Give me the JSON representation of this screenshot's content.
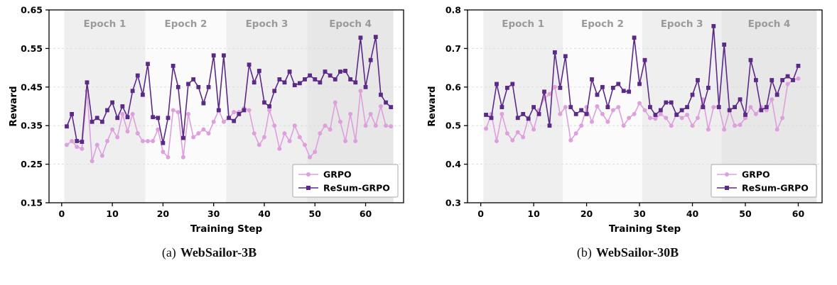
{
  "page": {
    "background": "#ffffff"
  },
  "chart_data": [
    {
      "id": "websailor-3b",
      "type": "line",
      "caption": {
        "prefix": "(a)",
        "title": "WebSailor-3B"
      },
      "xlabel": "Training Step",
      "ylabel": "Reward",
      "xlim": [
        -2.5,
        67.5
      ],
      "ylim": [
        0.15,
        0.65
      ],
      "xticks": [
        0,
        10,
        20,
        30,
        40,
        50,
        60
      ],
      "xticklabels": [
        "0",
        "10",
        "20",
        "30",
        "40",
        "50",
        "60"
      ],
      "yticks": [
        0.15,
        0.25,
        0.35,
        0.45,
        0.55,
        0.65
      ],
      "yticklabels": [
        "0.15",
        "0.25",
        "0.35",
        "0.45",
        "0.55",
        "0.65"
      ],
      "grid": "horizontal-dashed",
      "legend_position": "lower right",
      "epoch_label_color": "#9a9a9a",
      "epochs": [
        {
          "label": "Epoch 1",
          "start": 0.5,
          "end": 16.5,
          "fill": "#efefef"
        },
        {
          "label": "Epoch 2",
          "start": 16.5,
          "end": 32.5,
          "fill": "#fbfbfb"
        },
        {
          "label": "Epoch 3",
          "start": 32.5,
          "end": 48.5,
          "fill": "#efefef"
        },
        {
          "label": "Epoch 4",
          "start": 48.5,
          "end": 65.5,
          "fill": "#e7e7e7"
        }
      ],
      "x_range": [
        1,
        65
      ],
      "series": [
        {
          "name": "GRPO",
          "color": "#DDA0DD",
          "marker": "circle",
          "values": [
            0.3,
            0.31,
            0.295,
            0.29,
            0.44,
            0.258,
            0.3,
            0.272,
            0.31,
            0.34,
            0.32,
            0.38,
            0.335,
            0.38,
            0.33,
            0.31,
            0.31,
            0.31,
            0.34,
            0.282,
            0.268,
            0.39,
            0.385,
            0.268,
            0.38,
            0.32,
            0.33,
            0.34,
            0.33,
            0.36,
            0.39,
            0.36,
            0.37,
            0.385,
            0.385,
            0.395,
            0.39,
            0.33,
            0.3,
            0.32,
            0.39,
            0.35,
            0.29,
            0.33,
            0.31,
            0.35,
            0.32,
            0.3,
            0.268,
            0.282,
            0.33,
            0.35,
            0.34,
            0.41,
            0.36,
            0.31,
            0.38,
            0.31,
            0.44,
            0.35,
            0.38,
            0.35,
            0.4,
            0.35,
            0.348
          ]
        },
        {
          "name": "ReSum-GRPO",
          "color": "#5B2A86",
          "marker": "square",
          "values": [
            0.348,
            0.38,
            0.31,
            0.308,
            0.462,
            0.36,
            0.37,
            0.36,
            0.39,
            0.41,
            0.37,
            0.4,
            0.372,
            0.44,
            0.48,
            0.43,
            0.51,
            0.372,
            0.37,
            0.305,
            0.37,
            0.505,
            0.45,
            0.318,
            0.458,
            0.47,
            0.45,
            0.408,
            0.45,
            0.532,
            0.39,
            0.532,
            0.37,
            0.362,
            0.38,
            0.39,
            0.508,
            0.462,
            0.492,
            0.41,
            0.4,
            0.44,
            0.47,
            0.462,
            0.49,
            0.455,
            0.46,
            0.47,
            0.48,
            0.47,
            0.462,
            0.49,
            0.48,
            0.47,
            0.49,
            0.492,
            0.47,
            0.462,
            0.578,
            0.45,
            0.52,
            0.58,
            0.43,
            0.41,
            0.398
          ]
        }
      ]
    },
    {
      "id": "websailor-30b",
      "type": "line",
      "caption": {
        "prefix": "(b)",
        "title": "WebSailor-30B"
      },
      "xlabel": "Training Step",
      "ylabel": "Reward",
      "xlim": [
        -2.5,
        64.5
      ],
      "ylim": [
        0.3,
        0.8
      ],
      "xticks": [
        0,
        10,
        20,
        30,
        40,
        50,
        60
      ],
      "xticklabels": [
        "0",
        "10",
        "20",
        "30",
        "40",
        "50",
        "60"
      ],
      "yticks": [
        0.3,
        0.4,
        0.5,
        0.6,
        0.7,
        0.8
      ],
      "yticklabels": [
        "0.3",
        "0.4",
        "0.5",
        "0.6",
        "0.7",
        "0.8"
      ],
      "grid": "horizontal-dashed",
      "legend_position": "lower right",
      "epoch_label_color": "#9a9a9a",
      "epochs": [
        {
          "label": "Epoch 1",
          "start": 0.5,
          "end": 15.5,
          "fill": "#efefef"
        },
        {
          "label": "Epoch 2",
          "start": 15.5,
          "end": 30.5,
          "fill": "#fbfbfb"
        },
        {
          "label": "Epoch 3",
          "start": 30.5,
          "end": 45.5,
          "fill": "#efefef"
        },
        {
          "label": "Epoch 4",
          "start": 45.5,
          "end": 63.5,
          "fill": "#e7e7e7"
        }
      ],
      "x_range": [
        1,
        60
      ],
      "series": [
        {
          "name": "GRPO",
          "color": "#DDA0DD",
          "marker": "circle",
          "values": [
            0.492,
            0.53,
            0.46,
            0.53,
            0.48,
            0.462,
            0.483,
            0.47,
            0.52,
            0.49,
            0.54,
            0.57,
            0.582,
            0.6,
            0.53,
            0.548,
            0.462,
            0.48,
            0.5,
            0.548,
            0.51,
            0.55,
            0.53,
            0.51,
            0.54,
            0.548,
            0.5,
            0.52,
            0.53,
            0.558,
            0.54,
            0.52,
            0.518,
            0.53,
            0.52,
            0.5,
            0.53,
            0.52,
            0.528,
            0.5,
            0.52,
            0.568,
            0.49,
            0.548,
            0.55,
            0.49,
            0.54,
            0.5,
            0.502,
            0.52,
            0.548,
            0.53,
            0.548,
            0.54,
            0.568,
            0.49,
            0.52,
            0.608,
            0.618,
            0.622
          ]
        },
        {
          "name": "ReSum-GRPO",
          "color": "#5B2A86",
          "marker": "square",
          "values": [
            0.528,
            0.52,
            0.608,
            0.548,
            0.598,
            0.608,
            0.52,
            0.53,
            0.518,
            0.548,
            0.53,
            0.588,
            0.5,
            0.69,
            0.598,
            0.68,
            0.548,
            0.53,
            0.54,
            0.53,
            0.62,
            0.58,
            0.6,
            0.548,
            0.598,
            0.608,
            0.59,
            0.588,
            0.728,
            0.608,
            0.67,
            0.548,
            0.528,
            0.54,
            0.56,
            0.56,
            0.528,
            0.54,
            0.548,
            0.58,
            0.618,
            0.548,
            0.598,
            0.758,
            0.548,
            0.71,
            0.54,
            0.548,
            0.568,
            0.528,
            0.67,
            0.618,
            0.54,
            0.548,
            0.618,
            0.58,
            0.618,
            0.628,
            0.618,
            0.655
          ]
        }
      ]
    }
  ]
}
